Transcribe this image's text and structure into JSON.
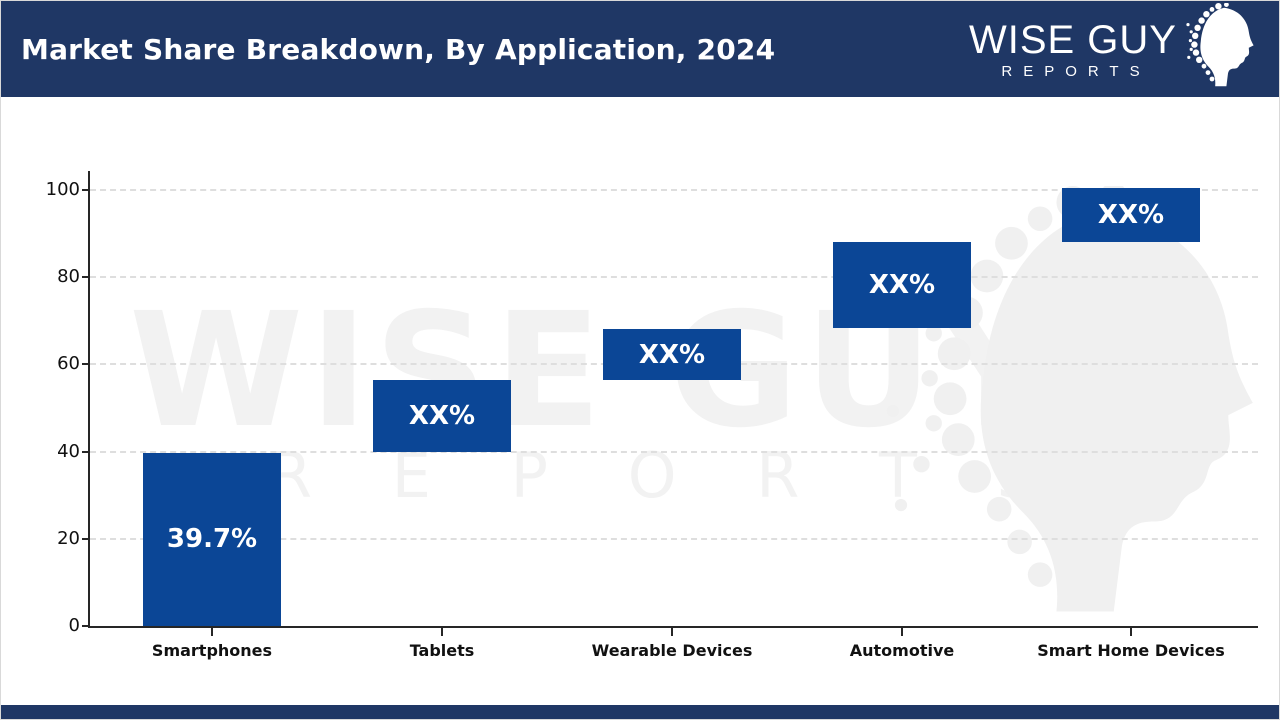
{
  "header": {
    "title": "Market Share Breakdown, By Application, 2024",
    "bg_color": "#1f3765",
    "text_color": "#ffffff",
    "logo": {
      "line1": "WISE GUY",
      "line2": "REPORTS"
    }
  },
  "watermark": {
    "line1": "WISE GUY",
    "line2": "R E P O R T S",
    "head_icon": "dotted-head-profile",
    "color": "#f2f2f2"
  },
  "chart_data": {
    "type": "bar",
    "subtype": "waterfall",
    "title": "Market Share Breakdown, By Application, 2024",
    "categories": [
      "Smartphones",
      "Tablets",
      "Wearable Devices",
      "Automotive",
      "Smart Home Devices"
    ],
    "series": [
      {
        "name": "Market Share",
        "segments": [
          {
            "category": "Smartphones",
            "start": 0,
            "end": 39.7,
            "label": "39.7%"
          },
          {
            "category": "Tablets",
            "start": 39.9,
            "end": 56.4,
            "label": "XX%"
          },
          {
            "category": "Wearable Devices",
            "start": 56.4,
            "end": 68.1,
            "label": "XX%"
          },
          {
            "category": "Automotive",
            "start": 68.3,
            "end": 88.1,
            "label": "XX%"
          },
          {
            "category": "Smart Home Devices",
            "start": 88.1,
            "end": 100.5,
            "label": "XX%"
          }
        ]
      }
    ],
    "yticks": [
      0,
      20,
      40,
      60,
      80,
      100
    ],
    "ylim": [
      0,
      104
    ],
    "xlabel": "",
    "ylabel": "",
    "grid": "horizontal-dashed",
    "legend": "none",
    "bar_color": "#0b4696",
    "bar_label_color": "#ffffff",
    "axis_color": "#262626",
    "grid_color": "#dedede"
  },
  "footer": {
    "bg_color": "#1f3765"
  }
}
